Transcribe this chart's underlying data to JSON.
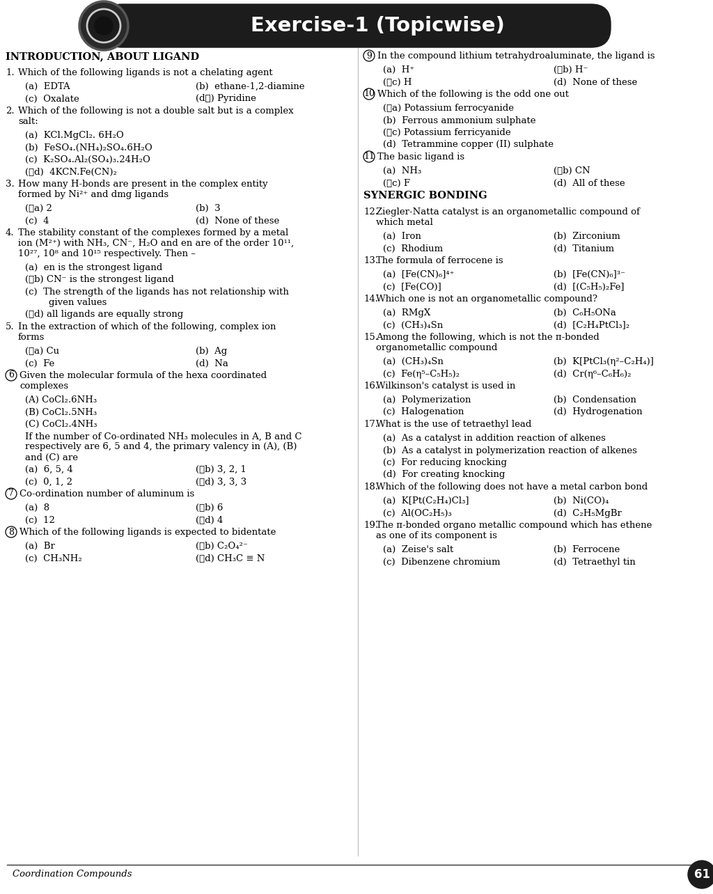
{
  "title": "Exercise-1 (Topicwise)",
  "bg_color": "#ffffff",
  "header_bg": "#1a1a1a",
  "header_text_color": "#ffffff",
  "body_text_color": "#000000",
  "page_number": "61",
  "footer_text": "Coordination Compounds",
  "left_column": [
    {
      "type": "section",
      "text": "INTRODUCTION, ABOUT LIGAND"
    },
    {
      "type": "q",
      "num": "1.",
      "text": "Which of the following ligands is not a chelating agent"
    },
    {
      "type": "opt2",
      "a": "(a)  EDTA",
      "b": "(b)  ethane-1,2-diamine"
    },
    {
      "type": "opt2",
      "a": "(c)  Oxalate",
      "b": "(d✓) Pyridine"
    },
    {
      "type": "q",
      "num": "2.",
      "text": "Which of the following is not a double salt but is a complex\nsalt:"
    },
    {
      "type": "opt1",
      "text": "(a)  KCl.MgCl₂. 6H₂O"
    },
    {
      "type": "opt1",
      "text": "(b)  FeSO₄.(NH₄)₂SO₄.6H₂O"
    },
    {
      "type": "opt1",
      "text": "(c)  K₂SO₄.Al₂(SO₄)₃.24H₂O"
    },
    {
      "type": "opt1",
      "text": "(✓d)  4KCN.Fe(CN)₂"
    },
    {
      "type": "q",
      "num": "3.",
      "text": "How many H-bonds are present in the complex entity\nformed by Ni²⁺ and dmg ligands"
    },
    {
      "type": "opt2",
      "a": "(✓a) 2",
      "b": "(b)  3"
    },
    {
      "type": "opt2",
      "a": "(c)  4",
      "b": "(d)  None of these"
    },
    {
      "type": "q",
      "num": "4.",
      "text": "The stability constant of the complexes formed by a metal\nion (M²⁺) with NH₃, CN⁻, H₂O and en are of the order 10¹¹,\n10²⁷, 10⁸ and 10¹⁵ respectively. Then –"
    },
    {
      "type": "opt1",
      "text": "(a)  en is the strongest ligand"
    },
    {
      "type": "opt1",
      "text": "(✓b) CN⁻ is the strongest ligand"
    },
    {
      "type": "opt1wrap",
      "text": "(c)  The strength of the ligands has not relationship with\n        given values"
    },
    {
      "type": "opt1",
      "text": "(✓d) all ligands are equally strong"
    },
    {
      "type": "q",
      "num": "5.",
      "text": "In the extraction of which of the following, complex ion\nforms"
    },
    {
      "type": "opt2",
      "a": "(✓a) Cu",
      "b": "(b)  Ag"
    },
    {
      "type": "opt2",
      "a": "(c)  Fe",
      "b": "(d)  Na"
    },
    {
      "type": "q_circle",
      "num": "6",
      "text": "Given the molecular formula of the hexa coordinated\ncomplexes"
    },
    {
      "type": "opt1",
      "text": "(A) CoCl₂.6NH₃"
    },
    {
      "type": "opt1",
      "text": "(B) CoCl₂.5NH₃"
    },
    {
      "type": "opt1",
      "text": "(C) CoCl₂.4NH₃"
    },
    {
      "type": "opt1wrap",
      "text": "If the number of Co-ordinated NH₃ molecules in A, B and C\nrespectively are 6, 5 and 4, the primary valency in (A), (B)\nand (C) are"
    },
    {
      "type": "opt2",
      "a": "(a)  6, 5, 4",
      "b": "(✓b) 3, 2, 1"
    },
    {
      "type": "opt2",
      "a": "(c)  0, 1, 2",
      "b": "(✓d) 3, 3, 3"
    },
    {
      "type": "q_circle",
      "num": "7",
      "text": "Co-ordination number of aluminum is"
    },
    {
      "type": "opt2",
      "a": "(a)  8",
      "b": "(✓b) 6"
    },
    {
      "type": "opt2",
      "a": "(c)  12",
      "b": "(✓d) 4"
    },
    {
      "type": "q_circle",
      "num": "8",
      "text": "Which of the following ligands is expected to bidentate"
    },
    {
      "type": "opt2",
      "a": "(a)  Br",
      "b": "(✓b) C₂O₄²⁻"
    },
    {
      "type": "opt2",
      "a": "(c)  CH₃NH₂",
      "b": "(✓d) CH₃C ≡ N"
    }
  ],
  "right_column": [
    {
      "type": "q_circle",
      "num": "9",
      "text": "In the compound lithium tetrahydroaluminate, the ligand is"
    },
    {
      "type": "opt2",
      "a": "(a)  H⁺",
      "b": "(✓b) H⁻"
    },
    {
      "type": "opt2",
      "a": "(✓c) H",
      "b": "(d)  None of these"
    },
    {
      "type": "q_circle",
      "num": "10",
      "text": "Which of the following is the odd one out"
    },
    {
      "type": "opt1",
      "text": "(✓a) Potassium ferrocyanide"
    },
    {
      "type": "opt1",
      "text": "(b)  Ferrous ammonium sulphate"
    },
    {
      "type": "opt1",
      "text": "(✓c) Potassium ferricyanide"
    },
    {
      "type": "opt1",
      "text": "(d)  Tetrammine copper (II) sulphate"
    },
    {
      "type": "q_circle",
      "num": "11",
      "text": "The basic ligand is"
    },
    {
      "type": "opt2",
      "a": "(a)  NH₃",
      "b": "(✓b) CN"
    },
    {
      "type": "opt2",
      "a": "(✓c) F",
      "b": "(d)  All of these"
    },
    {
      "type": "section",
      "text": "SYNERGIC BONDING"
    },
    {
      "type": "q",
      "num": "12.",
      "text": "Ziegler-Natta catalyst is an organometallic compound of\nwhich metal"
    },
    {
      "type": "opt2",
      "a": "(a)  Iron",
      "b": "(b)  Zirconium"
    },
    {
      "type": "opt2",
      "a": "(c)  Rhodium",
      "b": "(d)  Titanium"
    },
    {
      "type": "q",
      "num": "13.",
      "text": "The formula of ferrocene is"
    },
    {
      "type": "opt2",
      "a": "(a)  [Fe(CN)₆]⁴⁺",
      "b": "(b)  [Fe(CN)₆]³⁻"
    },
    {
      "type": "opt2",
      "a": "(c)  [Fe(CO)]",
      "b": "(d)  [(C₅H₅)₂Fe]"
    },
    {
      "type": "q",
      "num": "14.",
      "text": "Which one is not an organometallic compound?"
    },
    {
      "type": "opt2",
      "a": "(a)  RMgX",
      "b": "(b)  C₆H₅ONa"
    },
    {
      "type": "opt2",
      "a": "(c)  (CH₃)₄Sn",
      "b": "(d)  [C₂H₄PtCl₃]₂"
    },
    {
      "type": "q",
      "num": "15.",
      "text": "Among the following, which is not the π-bonded\norganometallic compound"
    },
    {
      "type": "opt2",
      "a": "(a)  (CH₃)₄Sn",
      "b": "(b)  K[PtCl₃(η²–C₂H₄)]"
    },
    {
      "type": "opt2",
      "a": "(c)  Fe(η⁵–C₅H₅)₂",
      "b": "(d)  Cr(η⁶–C₆H₆)₂"
    },
    {
      "type": "q",
      "num": "16.",
      "text": "Wilkinson's catalyst is used in"
    },
    {
      "type": "opt2",
      "a": "(a)  Polymerization",
      "b": "(b)  Condensation"
    },
    {
      "type": "opt2",
      "a": "(c)  Halogenation",
      "b": "(d)  Hydrogenation"
    },
    {
      "type": "q",
      "num": "17.",
      "text": "What is the use of tetraethyl lead"
    },
    {
      "type": "opt1",
      "text": "(a)  As a catalyst in addition reaction of alkenes"
    },
    {
      "type": "opt1",
      "text": "(b)  As a catalyst in polymerization reaction of alkenes"
    },
    {
      "type": "opt1",
      "text": "(c)  For reducing knocking"
    },
    {
      "type": "opt1",
      "text": "(d)  For creating knocking"
    },
    {
      "type": "q",
      "num": "18.",
      "text": "Which of the following does not have a metal carbon bond"
    },
    {
      "type": "opt2",
      "a": "(a)  K[Pt(C₂H₄)Cl₃]",
      "b": "(b)  Ni(CO)₄"
    },
    {
      "type": "opt2",
      "a": "(c)  Al(OC₂H₅)₃",
      "b": "(d)  C₂H₅MgBr"
    },
    {
      "type": "q",
      "num": "19.",
      "text": "The π-bonded organo metallic compound which has ethene\nas one of its component is"
    },
    {
      "type": "opt2",
      "a": "(a)  Zeise's salt",
      "b": "(b)  Ferrocene"
    },
    {
      "type": "opt2",
      "a": "(c)  Dibenzene chromium",
      "b": "(d)  Tetraethyl tin"
    }
  ]
}
